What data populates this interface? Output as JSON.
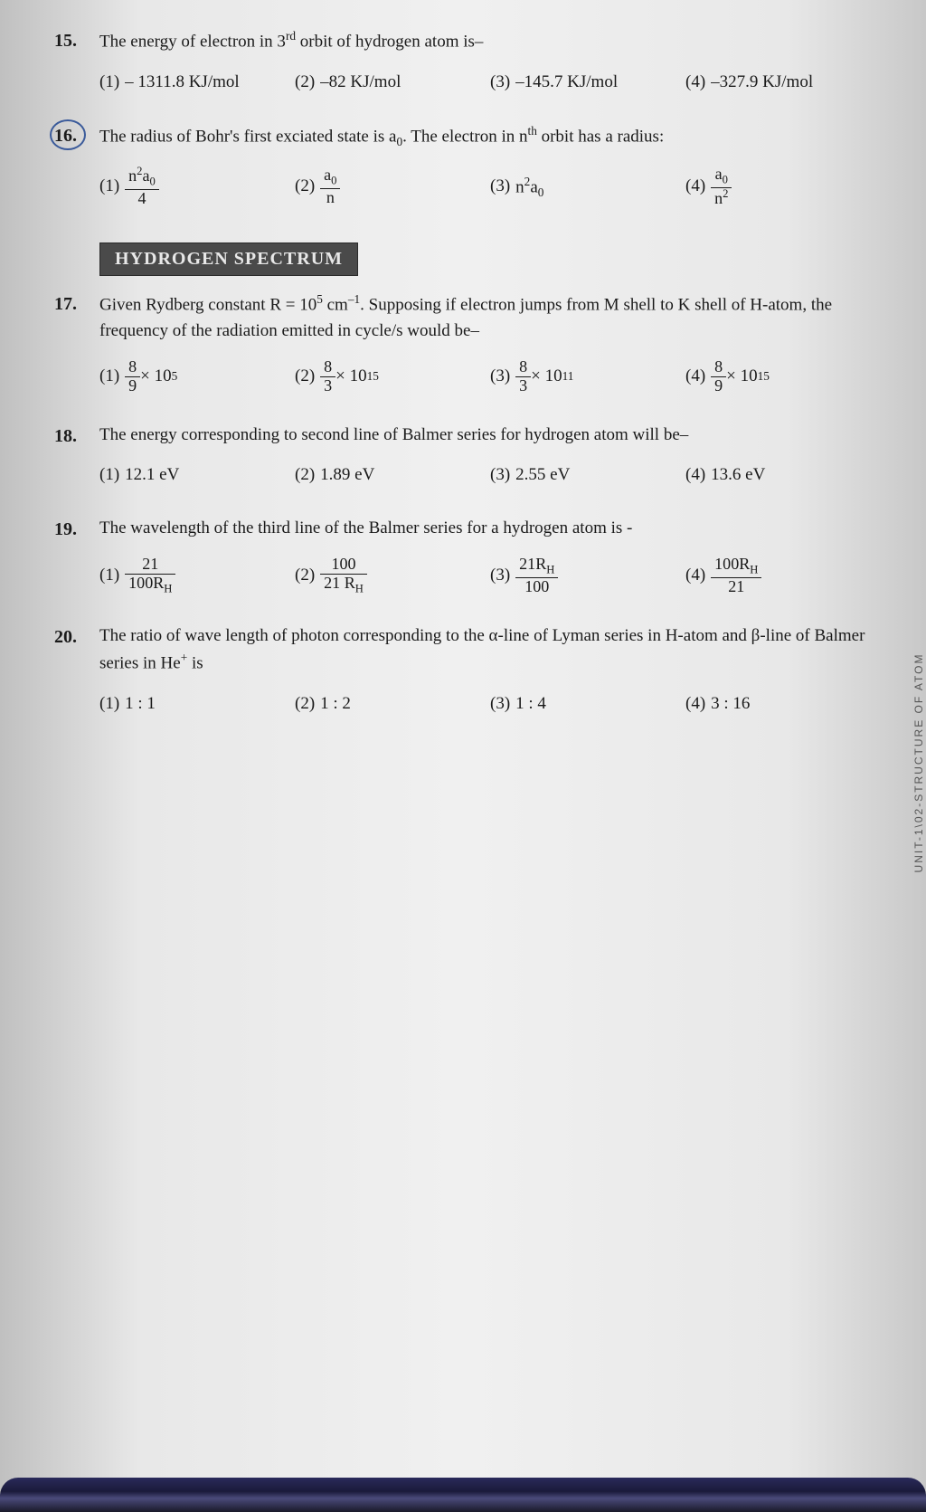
{
  "side_label": "UNIT-1\\02-STRUCTURE OF ATOM",
  "section_header": "HYDROGEN SPECTRUM",
  "questions": [
    {
      "num": "15.",
      "text_parts": [
        "The energy of electron in 3",
        "rd",
        " orbit of hydrogen atom is–"
      ],
      "options": [
        {
          "label": "(1)",
          "text": "– 1311.8 KJ/mol"
        },
        {
          "label": "(2)",
          "text": "–82 KJ/mol"
        },
        {
          "label": "(3)",
          "text": "–145.7 KJ/mol"
        },
        {
          "label": "(4)",
          "text": "–327.9 KJ/mol"
        }
      ]
    },
    {
      "num": "16.",
      "circled": true,
      "text_parts": [
        "The radius of Bohr's first exciated state is a",
        "0",
        ". The electron in n",
        "th",
        " orbit has a radius:"
      ],
      "options": [
        {
          "label": "(1)",
          "frac": {
            "num_parts": [
              "n",
              "2",
              "a",
              "0"
            ],
            "den": "4"
          }
        },
        {
          "label": "(2)",
          "frac": {
            "num_parts": [
              "a",
              "0"
            ],
            "den": "n"
          }
        },
        {
          "label": "(3)",
          "text_parts": [
            "n",
            "2",
            "a",
            "0"
          ]
        },
        {
          "label": "(4)",
          "frac": {
            "num_parts": [
              "a",
              "0"
            ],
            "den_parts": [
              "n",
              "2"
            ]
          }
        }
      ]
    },
    {
      "num": "17.",
      "text_parts_multi": [
        [
          "Given Rydberg constant R = 10",
          "5",
          " cm",
          "–1",
          ". Supposing if electron jumps from M shell to K shell of H-atom, the"
        ],
        [
          "frequency of the radiation emitted in cycle/s would be–"
        ]
      ],
      "options": [
        {
          "label": "(1)",
          "frac": {
            "num": "8",
            "den": "9"
          },
          "suffix_parts": [
            " × 10",
            "5"
          ]
        },
        {
          "label": "(2)",
          "frac": {
            "num": "8",
            "den": "3"
          },
          "suffix_parts": [
            " × 10",
            "15"
          ]
        },
        {
          "label": "(3)",
          "frac": {
            "num": "8",
            "den": "3"
          },
          "suffix_parts": [
            " × 10",
            "11"
          ]
        },
        {
          "label": "(4)",
          "frac": {
            "num": "8",
            "den": "9"
          },
          "suffix_parts": [
            " × 10",
            "15"
          ]
        }
      ]
    },
    {
      "num": "18.",
      "text": "The energy corresponding to second line of Balmer series for hydrogen atom will be–",
      "options": [
        {
          "label": "(1)",
          "text": "12.1 eV"
        },
        {
          "label": "(2)",
          "text": "1.89 eV"
        },
        {
          "label": "(3)",
          "text": "2.55 eV"
        },
        {
          "label": "(4)",
          "text": "13.6 eV"
        }
      ]
    },
    {
      "num": "19.",
      "text": "The wavelength of the third line of the Balmer series for a hydrogen atom is -",
      "options": [
        {
          "label": "(1)",
          "frac": {
            "num": "21",
            "den_parts": [
              "100R",
              "H"
            ]
          }
        },
        {
          "label": "(2)",
          "frac": {
            "num": "100",
            "den_parts": [
              "21 R",
              "H"
            ]
          }
        },
        {
          "label": "(3)",
          "frac": {
            "num_parts": [
              "21R",
              "H"
            ],
            "den": "100"
          }
        },
        {
          "label": "(4)",
          "frac": {
            "num_parts": [
              "100R",
              "H"
            ],
            "den": "21"
          }
        }
      ]
    },
    {
      "num": "20.",
      "text_parts_multi": [
        [
          "The ratio of wave length of photon corresponding to the α-line of Lyman series in H-atom and β-line of Balmer"
        ],
        [
          "series in He",
          "+",
          " is"
        ]
      ],
      "options": [
        {
          "label": "(1)",
          "text": "1 : 1"
        },
        {
          "label": "(2)",
          "text": "1 : 2"
        },
        {
          "label": "(3)",
          "text": "1 : 4"
        },
        {
          "label": "(4)",
          "text": "3 : 16"
        }
      ]
    }
  ]
}
